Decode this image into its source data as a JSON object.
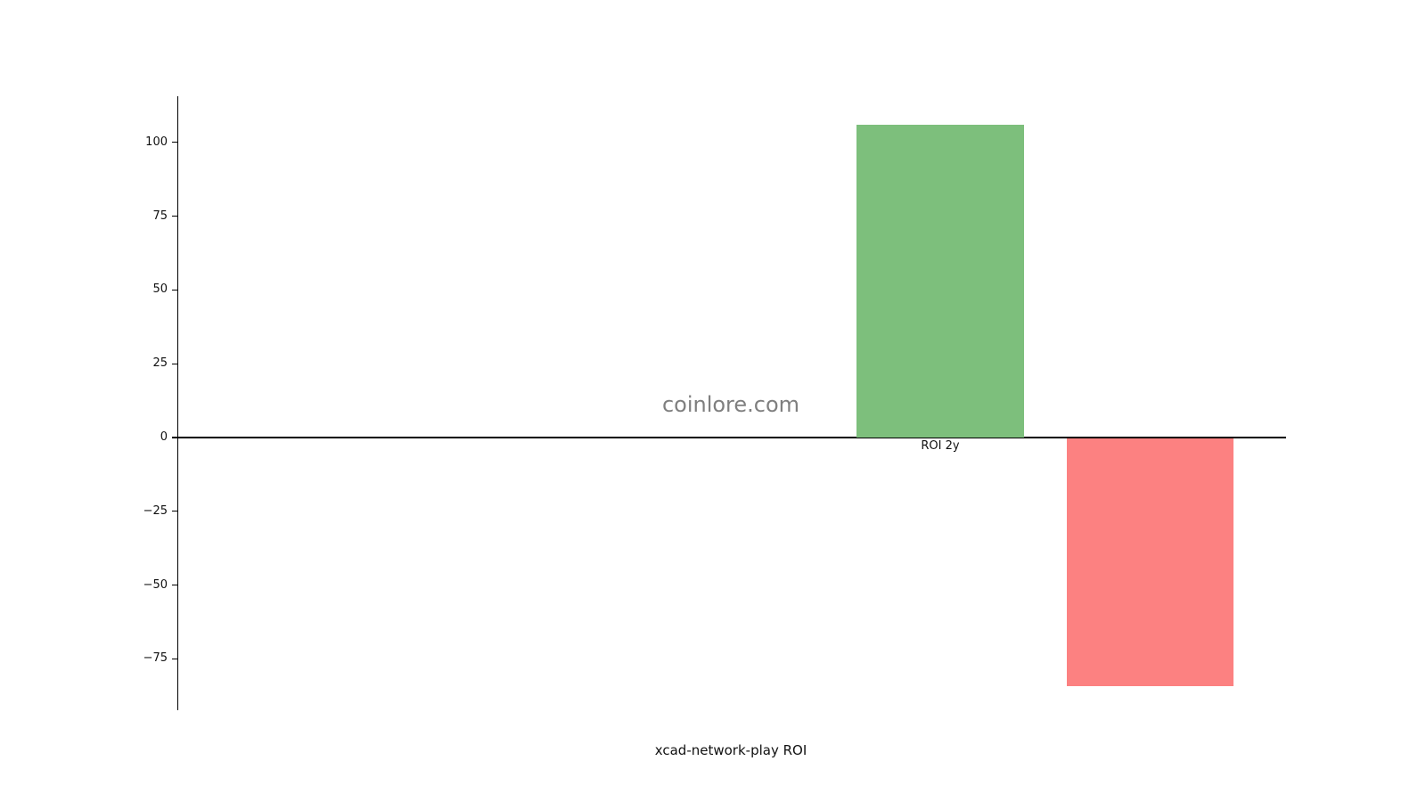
{
  "page": {
    "background": "#ffffff"
  },
  "watermark": {
    "text": "coinlore.com",
    "color": "#7f7f7f"
  },
  "footer": {
    "title": "xcad-network-play ROI"
  },
  "chart_data": {
    "type": "bar",
    "title": "xcad-network-play ROI",
    "watermark": "coinlore.com",
    "categories": [
      "ROI 2y",
      ""
    ],
    "bars": [
      {
        "label": "ROI 2y",
        "value": 106,
        "color": "#7dbf7c"
      },
      {
        "label": "",
        "value": -84,
        "color": "#fc8181"
      }
    ],
    "xlabel": "",
    "ylabel": "",
    "ylim": [
      -93.5,
      115.5
    ],
    "yticks": [
      {
        "label": "100",
        "value": 100
      },
      {
        "label": "75",
        "value": 75
      },
      {
        "label": "50",
        "value": 50
      },
      {
        "label": "25",
        "value": 25
      },
      {
        "label": "0",
        "value": 0
      },
      {
        "label": "−25",
        "value": -25
      },
      {
        "label": "−50",
        "value": -50
      },
      {
        "label": "−75",
        "value": -75
      }
    ],
    "grid": false,
    "legend": false,
    "axis_color": "#000000",
    "positive_color": "#7dbf7c",
    "negative_color": "#fc8181"
  }
}
